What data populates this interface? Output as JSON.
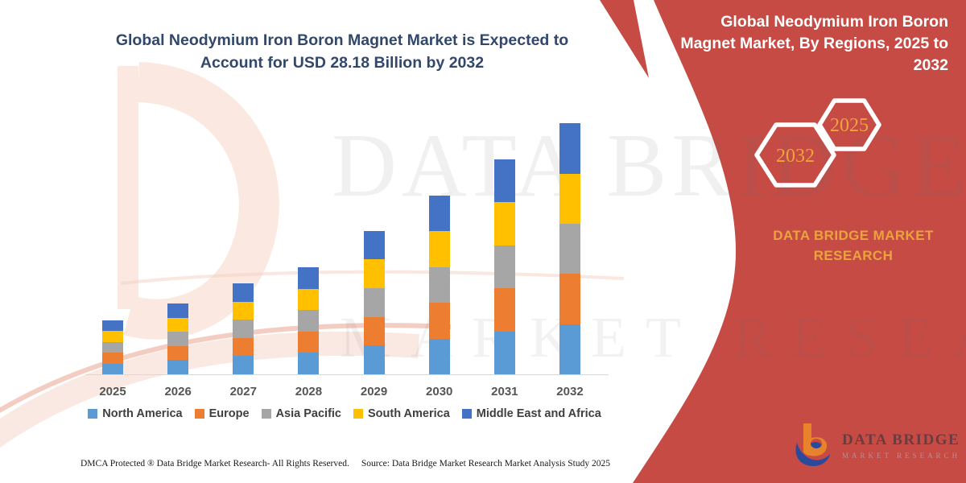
{
  "colors": {
    "panel_red": "#C64B44",
    "title_blue": "#31486B",
    "accent_gold": "#EDA43C",
    "axis_gray": "#d8d8d8"
  },
  "left_panel": {
    "title_line1": "Global Neodymium Iron Boron Magnet Market is Expected to",
    "title_line2": "Account for USD 28.18 Billion by 2032"
  },
  "right_panel": {
    "title": "Global Neodymium Iron Boron Magnet Market, By Regions, 2025 to 2032",
    "hexagons": [
      {
        "label": "2032"
      },
      {
        "label": "2025"
      }
    ],
    "brand_line1": "DATA BRIDGE MARKET",
    "brand_line2": "RESEARCH"
  },
  "chart_data": {
    "type": "bar",
    "stacked": true,
    "unit": "USD Billion",
    "categories": [
      "2025",
      "2026",
      "2027",
      "2028",
      "2029",
      "2030",
      "2031",
      "2032"
    ],
    "series": [
      {
        "name": "North America",
        "color": "#5B9BD5",
        "values": [
          1.21,
          1.59,
          2.04,
          2.4,
          3.22,
          4.01,
          4.82,
          5.64
        ]
      },
      {
        "name": "Europe",
        "color": "#ED7D31",
        "values": [
          1.21,
          1.59,
          2.04,
          2.4,
          3.22,
          4.01,
          4.82,
          5.63
        ]
      },
      {
        "name": "Asia Pacific",
        "color": "#A6A6A6",
        "values": [
          1.21,
          1.59,
          2.04,
          2.4,
          3.22,
          4.01,
          4.82,
          5.64
        ]
      },
      {
        "name": "South America",
        "color": "#FFC000",
        "values": [
          1.21,
          1.59,
          2.04,
          2.4,
          3.22,
          4.01,
          4.82,
          5.63
        ]
      },
      {
        "name": "Middle East and Africa",
        "color": "#4472C4",
        "values": [
          1.21,
          1.59,
          2.04,
          2.4,
          3.22,
          4.01,
          4.82,
          5.64
        ]
      }
    ],
    "totals": [
      6.05,
      7.95,
      10.2,
      12.0,
      16.1,
      20.05,
      24.1,
      28.18
    ],
    "ylim": [
      0,
      30
    ],
    "gridlines": false,
    "legend_position": "bottom",
    "highlight_total_2032": "USD 28.18 Billion"
  },
  "watermark": {
    "line1": "DATA BRIDGE",
    "line2": "MARKET RESEARCH"
  },
  "footer": {
    "dmca": "DMCA Protected ® Data Bridge Market Research-  All Rights Reserved.",
    "source": "Source: Data Bridge Market Research  Market Analysis Study 2025"
  },
  "logo": {
    "name": "DATA BRIDGE",
    "subtitle": "MARKET RESEARCH"
  }
}
